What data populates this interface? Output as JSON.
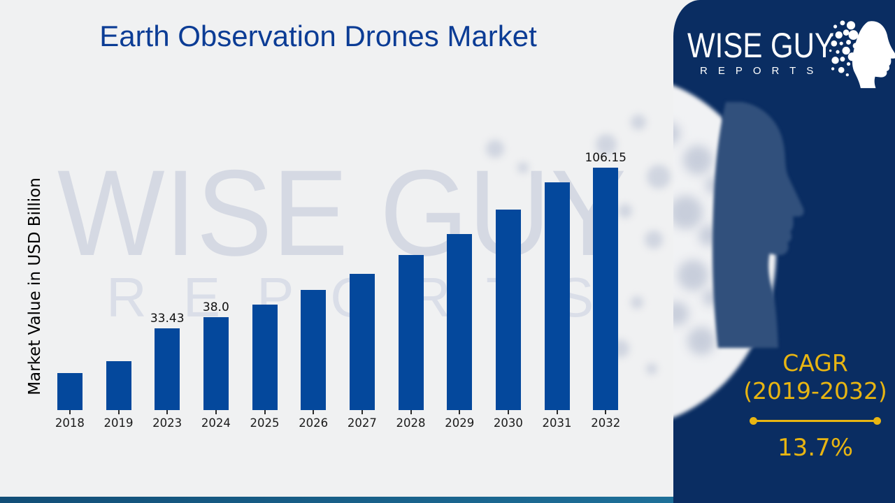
{
  "header": {
    "title": "Earth Observation Drones Market",
    "title_color": "#0b3c95"
  },
  "chart_data": {
    "type": "bar",
    "title": "Earth Observation Drones Market",
    "xlabel": "",
    "ylabel": "Market Value in USD Billion",
    "categories": [
      "2018",
      "2019",
      "2023",
      "2024",
      "2025",
      "2026",
      "2027",
      "2028",
      "2029",
      "2030",
      "2031",
      "2032"
    ],
    "values": [
      15.1,
      20.0,
      33.43,
      38.0,
      43.2,
      49.1,
      55.8,
      63.5,
      72.2,
      82.1,
      93.3,
      106.15
    ],
    "bar_value_labels": [
      "",
      "",
      "33.43",
      "38.0",
      "",
      "",
      "",
      "",
      "",
      "",
      "",
      "106.15"
    ],
    "unit": "USD Billion",
    "ylim": [
      0,
      110
    ],
    "bar_color": "#04489c",
    "grid": false,
    "legend": false
  },
  "watermark": {
    "line1": "WISE GUY",
    "line2": "REPORTS"
  },
  "logo": {
    "name": "WISE GUY",
    "sub": "REPORTS"
  },
  "sidebar": {
    "background": "#0a2d62",
    "accent": "#e8b512",
    "cagr_label": "CAGR",
    "cagr_range": "(2019-2032)",
    "cagr_value": "13.7%"
  }
}
